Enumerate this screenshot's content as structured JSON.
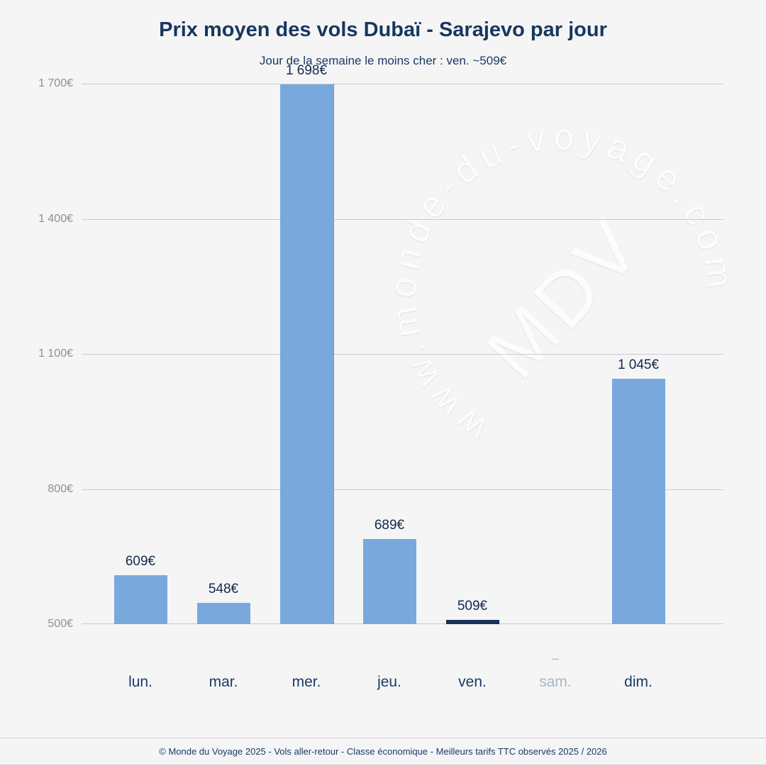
{
  "header": {
    "title": "Prix moyen des vols Dubaï - Sarajevo par jour",
    "subtitle": "Jour de la semaine le moins cher : ven. ~509€"
  },
  "chart_data": {
    "type": "bar",
    "title": "Prix moyen des vols Dubaï - Sarajevo par jour",
    "subtitle": "Jour de la semaine le moins cher : ven. ~509€",
    "categories": [
      "lun.",
      "mar.",
      "mer.",
      "jeu.",
      "ven.",
      "sam.",
      "dim."
    ],
    "values": [
      609,
      548,
      1698,
      689,
      509,
      null,
      1045
    ],
    "value_labels": [
      "609€",
      "548€",
      "1 698€",
      "689€",
      "509€",
      "–",
      "1 045€"
    ],
    "missing_label": "–",
    "ylim": [
      500,
      1700
    ],
    "yticks": [
      500,
      800,
      1100,
      1400,
      1700
    ],
    "ytick_labels": [
      "500€",
      "800€",
      "1 100€",
      "1 400€",
      "1 700€"
    ],
    "grid": true,
    "legend": "none",
    "bar_color": "#79a9dc",
    "highlight_color": "#16325a",
    "highlight_index": 4,
    "missing_index": 5,
    "currency": "€"
  },
  "watermark": {
    "circle_text": "www.monde-du-voyage.com",
    "center_text": "MDV"
  },
  "footer": {
    "text": "© Monde du Voyage 2025 - Vols aller-retour - Classe économique - Meilleurs tarifs TTC observés 2025 / 2026"
  }
}
